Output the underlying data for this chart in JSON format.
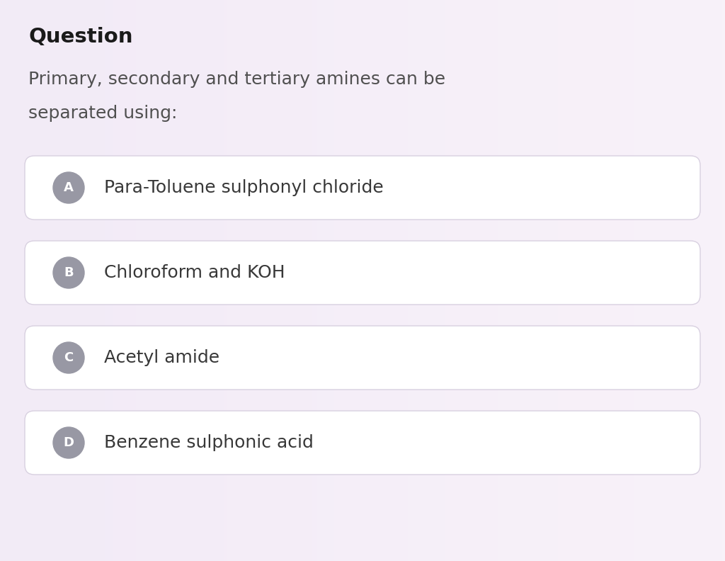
{
  "title": "Question",
  "question_text_line1": "Primary, secondary and tertiary amines can be",
  "question_text_line2": "separated using:",
  "options": [
    {
      "label": "A",
      "text": "Para-Toluene sulphonyl chloride"
    },
    {
      "label": "B",
      "text": "Chloroform and KOH"
    },
    {
      "label": "C",
      "text": "Acetyl amide"
    },
    {
      "label": "D",
      "text": "Benzene sulphonic acid"
    }
  ],
  "background_color": "#f7f0f8",
  "card_background": "#ffffff",
  "card_border_color": "#d8d0e0",
  "badge_color": "#9898a4",
  "badge_text_color": "#ffffff",
  "title_color": "#1a1a1a",
  "question_color": "#505050",
  "option_text_color": "#383838",
  "title_fontsize": 21,
  "question_fontsize": 18,
  "option_fontsize": 18,
  "badge_fontsize": 13,
  "fig_width": 10.24,
  "fig_height": 7.92,
  "dpi": 100
}
